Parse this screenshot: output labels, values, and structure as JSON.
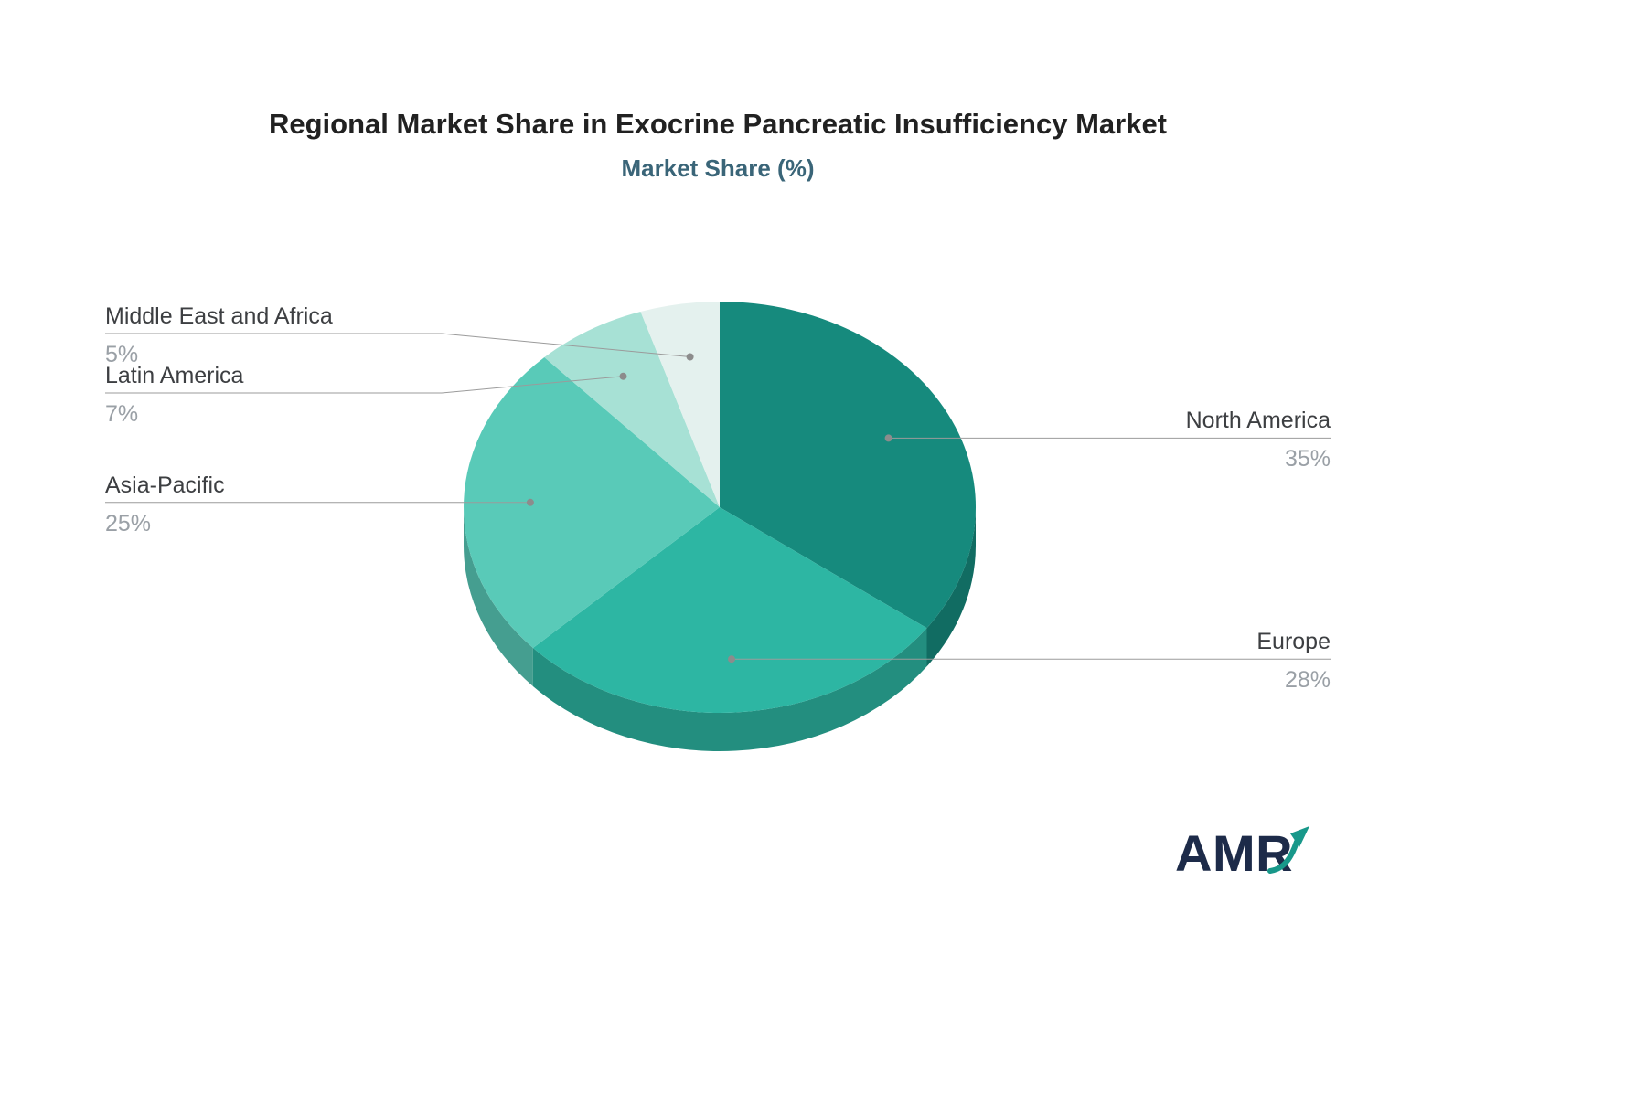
{
  "title": "Regional Market Share in Exocrine Pancreatic Insufficiency Market",
  "subtitle": "Market Share (%)",
  "logo": {
    "text": "AMR"
  },
  "colors": {
    "title_color": "#212121",
    "subtitle_color": "#3a6578",
    "label_name_color": "#3d3f42",
    "label_value_color": "#9aa0a6",
    "leader_line_color": "#9b9b9b",
    "callout_dot_color": "#8c8c8c",
    "logo_text_color": "#1d2b49",
    "logo_arrow_color": "#18988a"
  },
  "chart_data": {
    "type": "pie",
    "title": "Regional Market Share in Exocrine Pancreatic Insufficiency Market",
    "subtitle": "Market Share (%)",
    "unit": "%",
    "categories": [
      "North America",
      "Europe",
      "Asia-Pacific",
      "Latin America",
      "Middle East and Africa"
    ],
    "values": [
      35,
      28,
      25,
      7,
      5
    ],
    "colors": [
      "#168a7d",
      "#2db6a3",
      "#59cab8",
      "#a7e1d5",
      "#e4f1ee"
    ],
    "start_angle_deg": 0,
    "direction": "clockwise",
    "style": "3d-pie",
    "legend": "callout-labels",
    "grid": false
  }
}
